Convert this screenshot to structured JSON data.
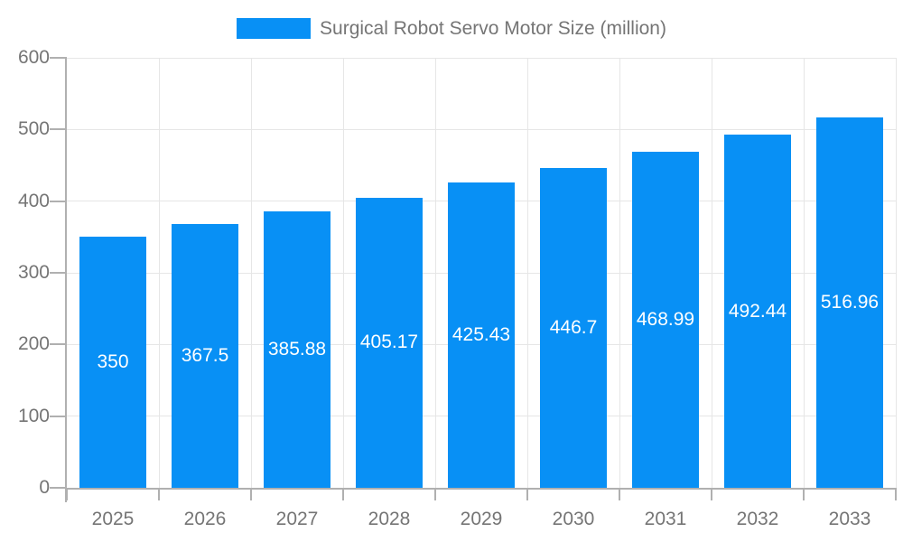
{
  "chart_data": {
    "type": "bar",
    "title": "Surgical Robot Servo Motor Size (million)",
    "categories": [
      "2025",
      "2026",
      "2027",
      "2028",
      "2029",
      "2030",
      "2031",
      "2032",
      "2033"
    ],
    "series": [
      {
        "name": "Surgical Robot Servo Motor Size (million)",
        "values": [
          350,
          367.5,
          385.88,
          405.17,
          425.43,
          446.7,
          468.99,
          492.44,
          516.96
        ]
      }
    ],
    "value_labels": [
      "350",
      "367.5",
      "385.88",
      "405.17",
      "425.43",
      "446.7",
      "468.99",
      "492.44",
      "516.96"
    ],
    "xlabel": "",
    "ylabel": "",
    "ylim": [
      0,
      600
    ],
    "ytick_step": 100,
    "yticks": [
      0,
      100,
      200,
      300,
      400,
      500,
      600
    ],
    "grid": true,
    "legend_position": "top-center",
    "colors": {
      "bar": "#0890f5",
      "axis_text": "#757575",
      "axis_line": "#b0b0b0",
      "gridline": "#e6e6e6",
      "value_label": "#ffffff",
      "background": "#ffffff"
    }
  }
}
